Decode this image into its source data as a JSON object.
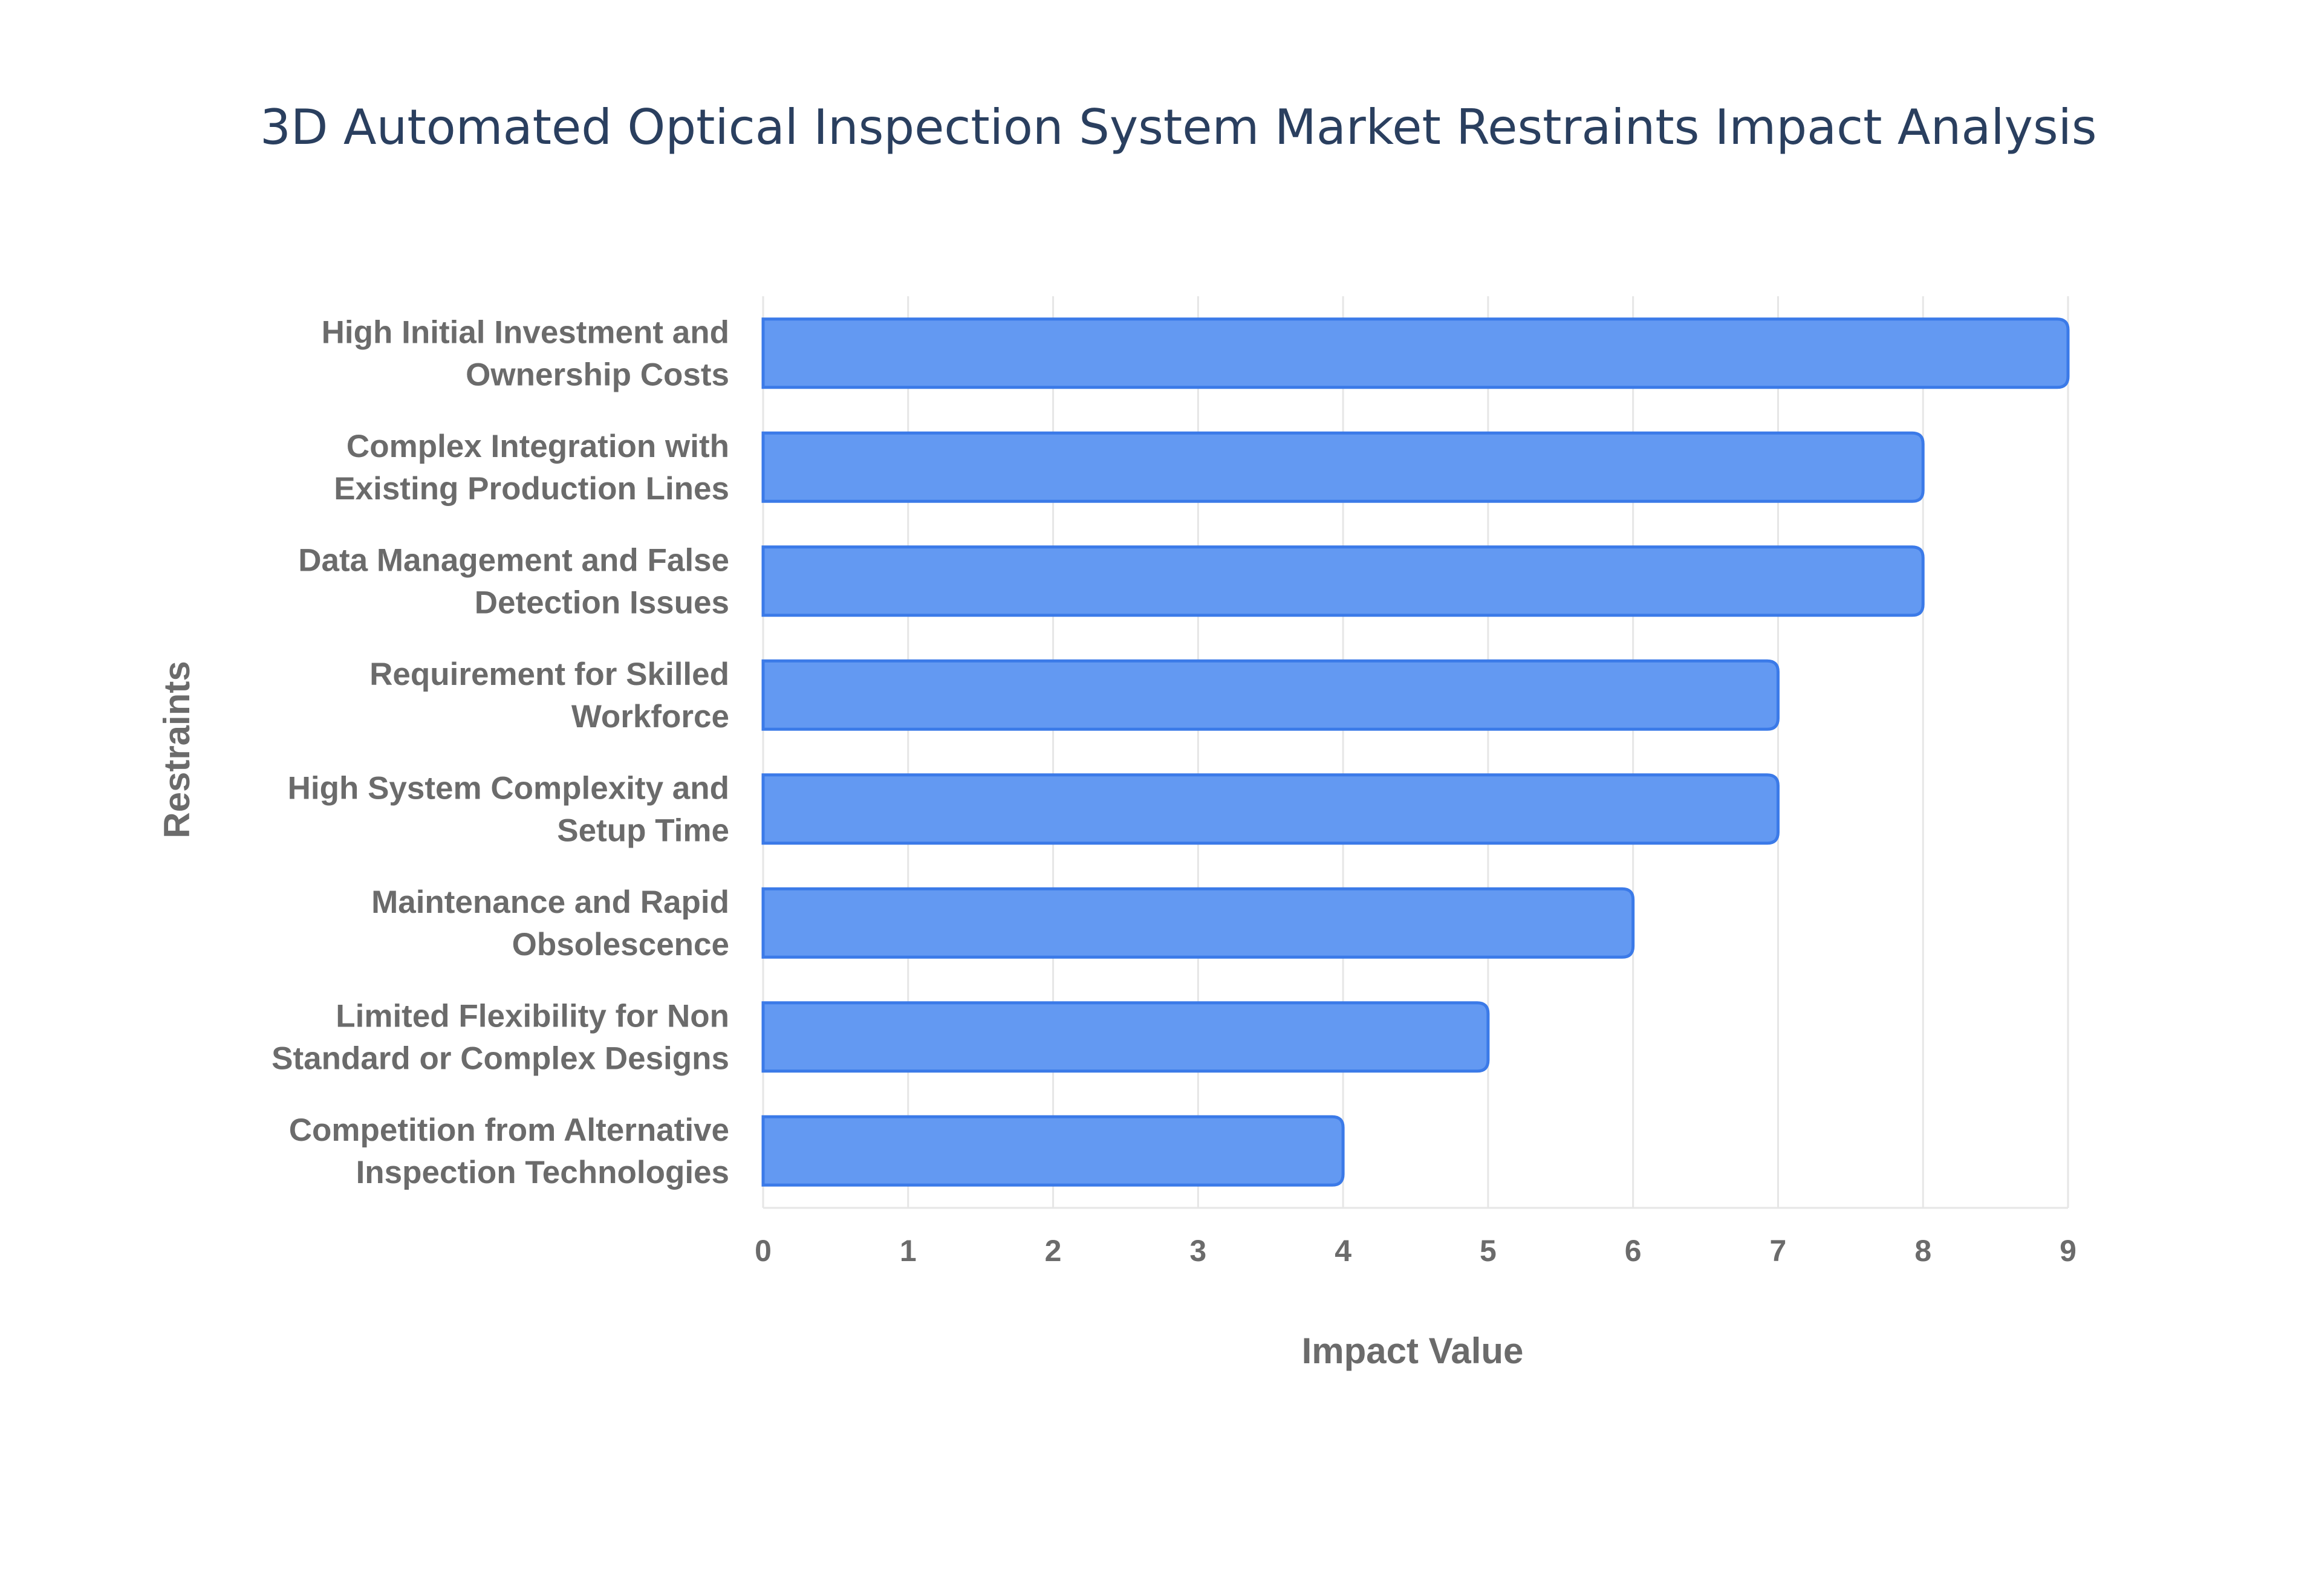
{
  "chart_data": {
    "type": "bar",
    "orientation": "horizontal",
    "title": "3D Automated Optical Inspection System Market Restraints Impact Analysis",
    "xlabel": "Impact Value",
    "ylabel": "Restraints",
    "categories": [
      [
        "High Initial Investment and",
        "Ownership Costs"
      ],
      [
        "Complex Integration with",
        "Existing Production Lines"
      ],
      [
        "Data Management and False",
        "Detection Issues"
      ],
      [
        "Requirement for Skilled",
        "Workforce"
      ],
      [
        "High System Complexity and",
        "Setup Time"
      ],
      [
        "Maintenance and Rapid",
        "Obsolescence"
      ],
      [
        "Limited Flexibility for Non",
        "Standard or Complex Designs"
      ],
      [
        "Competition from Alternative",
        "Inspection Technologies"
      ]
    ],
    "values": [
      9,
      8,
      8,
      7,
      7,
      6,
      5,
      4
    ],
    "xlim": [
      0,
      9
    ],
    "xticks": [
      "0",
      "1",
      "2",
      "3",
      "4",
      "5",
      "6",
      "7",
      "8",
      "9"
    ],
    "grid": true,
    "legend": "none",
    "bar_color": "#6399f2",
    "bar_border_color": "#3b7ae8"
  }
}
